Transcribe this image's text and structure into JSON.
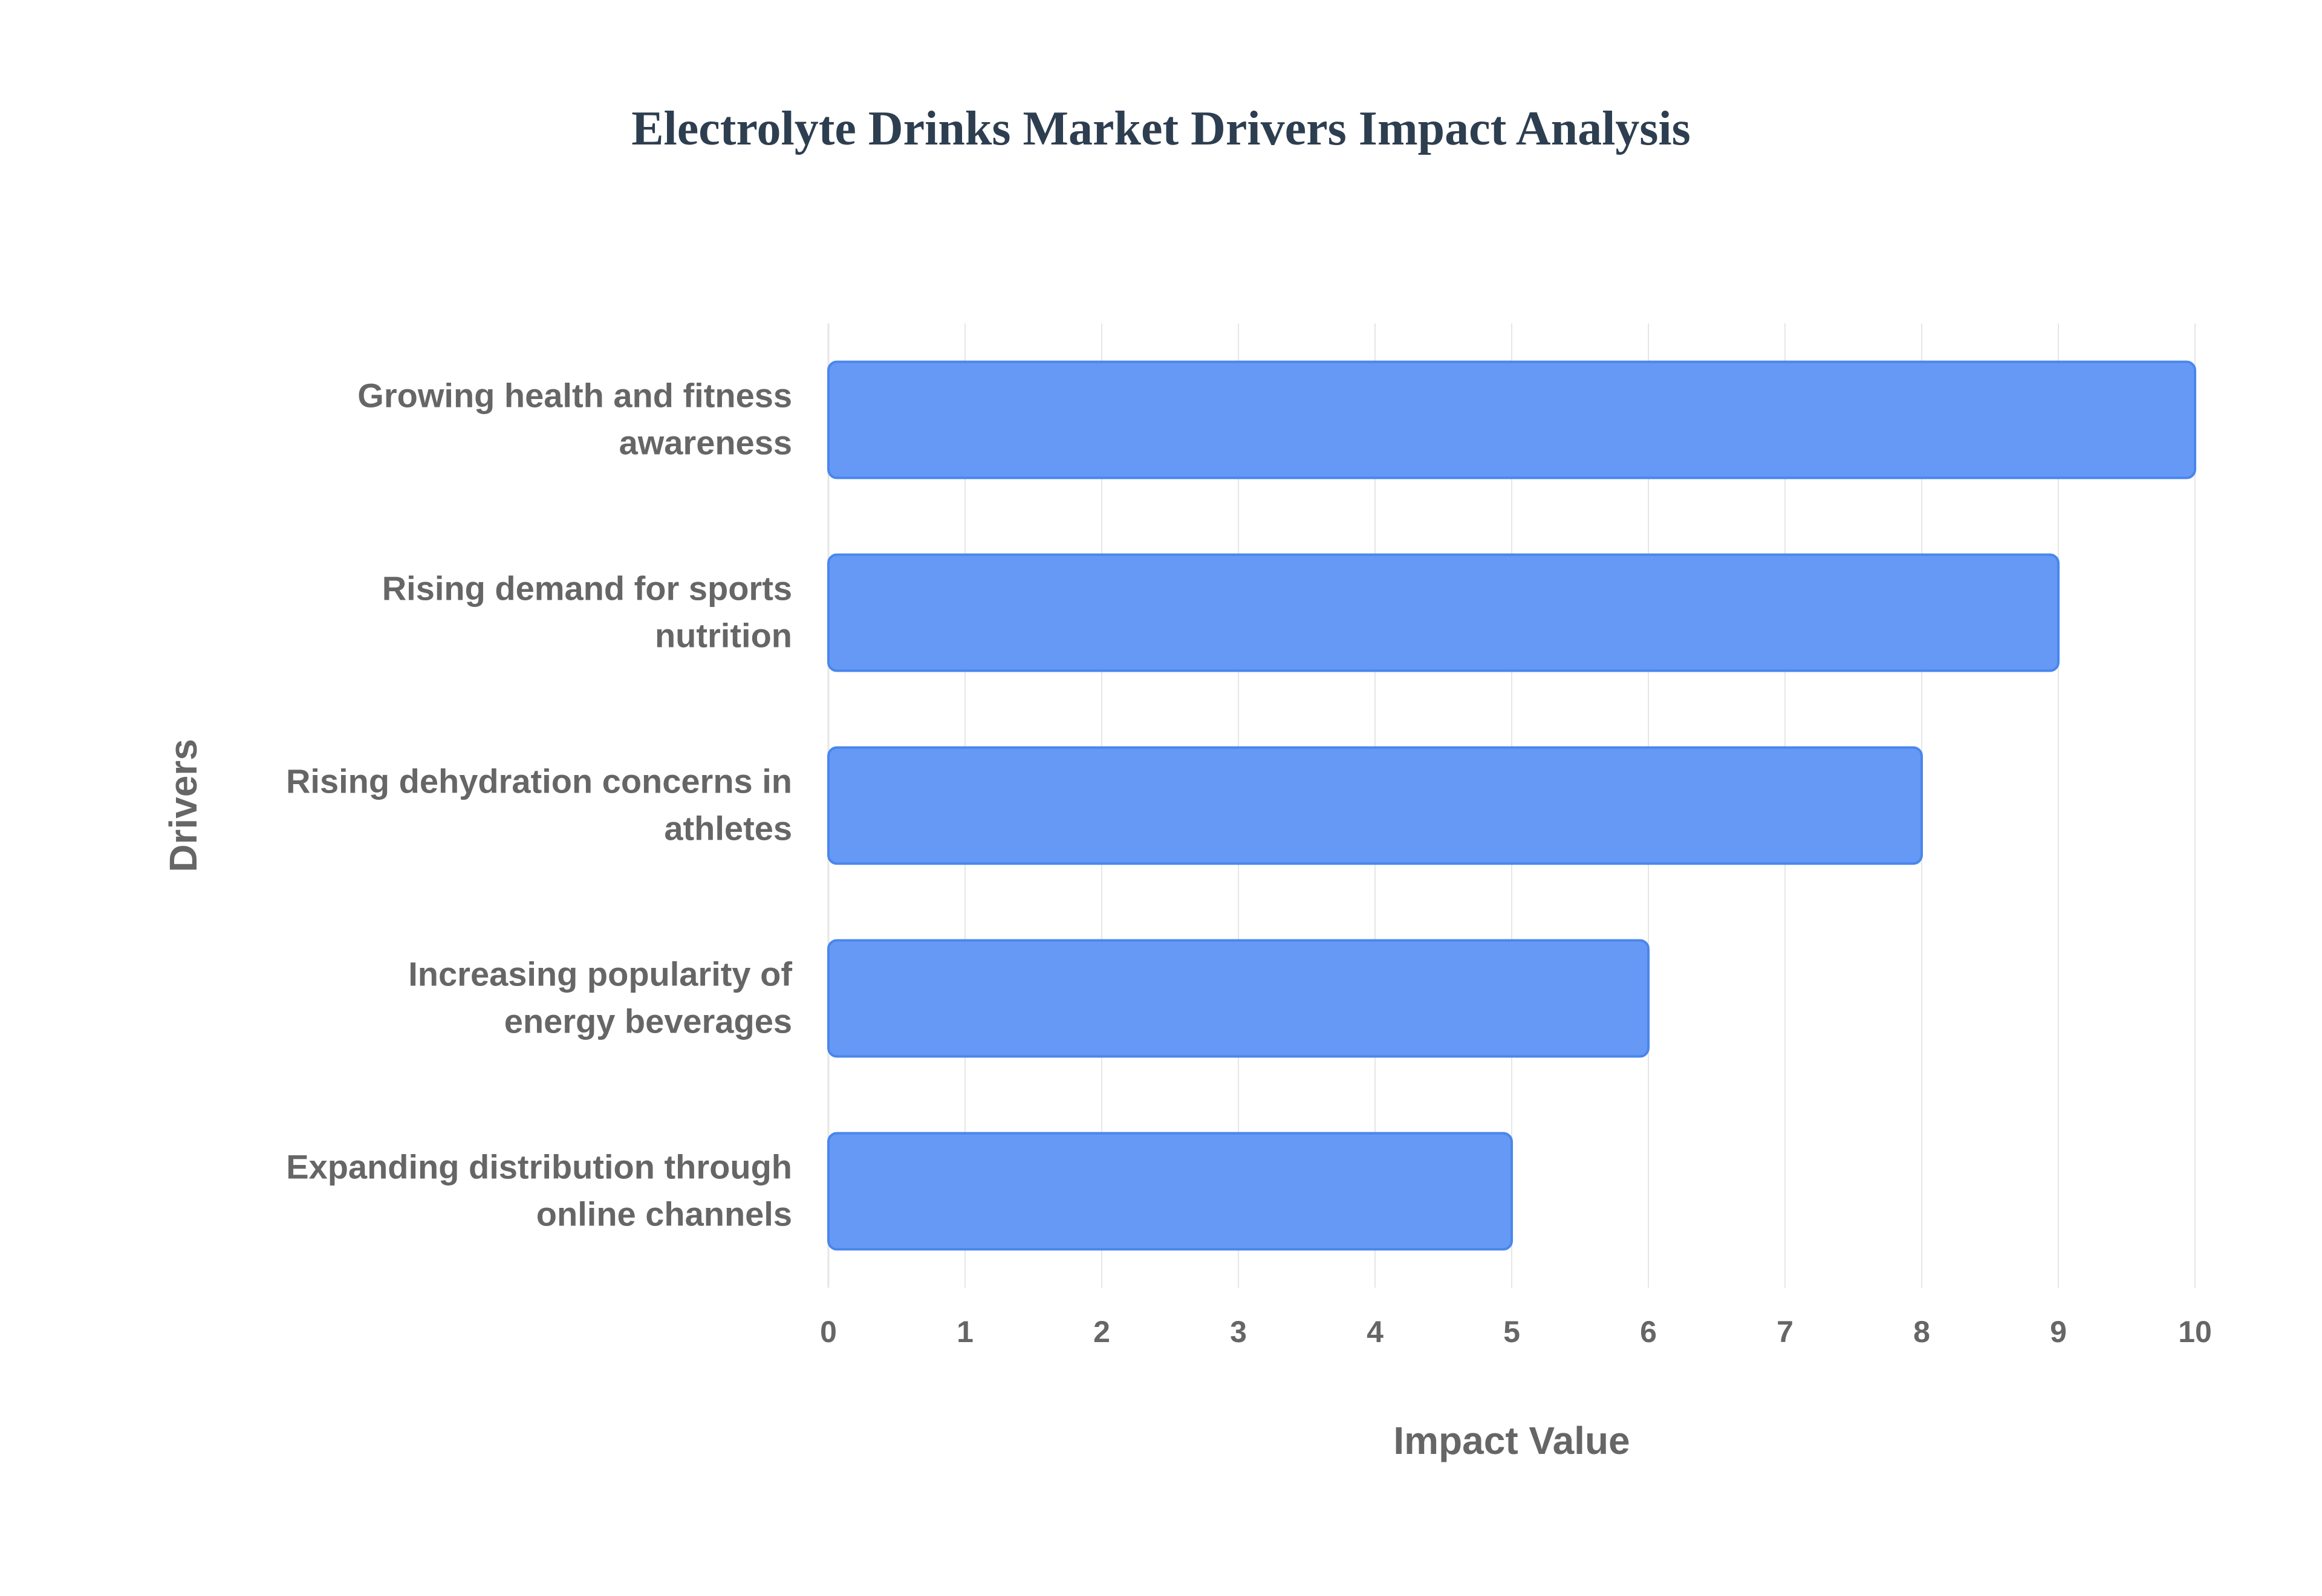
{
  "chart_data": {
    "type": "bar",
    "orientation": "horizontal",
    "title": "Electrolyte Drinks Market Drivers Impact Analysis",
    "xlabel": "Impact Value",
    "ylabel": "Drivers",
    "categories": [
      [
        "Growing health and fitness",
        "awareness"
      ],
      [
        "Rising demand for sports",
        "nutrition"
      ],
      [
        "Rising dehydration concerns in",
        "athletes"
      ],
      [
        "Increasing popularity of",
        "energy beverages"
      ],
      [
        "Expanding distribution through",
        "online channels"
      ]
    ],
    "values": [
      10,
      9,
      8,
      6,
      5
    ],
    "xlim": [
      0,
      10
    ],
    "xticks": [
      0,
      1,
      2,
      3,
      4,
      5,
      6,
      7,
      8,
      9,
      10
    ],
    "grid": true,
    "legend": "none",
    "colors": {
      "bar_fill": "#6699f5",
      "bar_stroke": "#4a86ec",
      "title": "#2d3e50",
      "axis_text": "#666666",
      "grid": "#e6e6e6"
    }
  }
}
